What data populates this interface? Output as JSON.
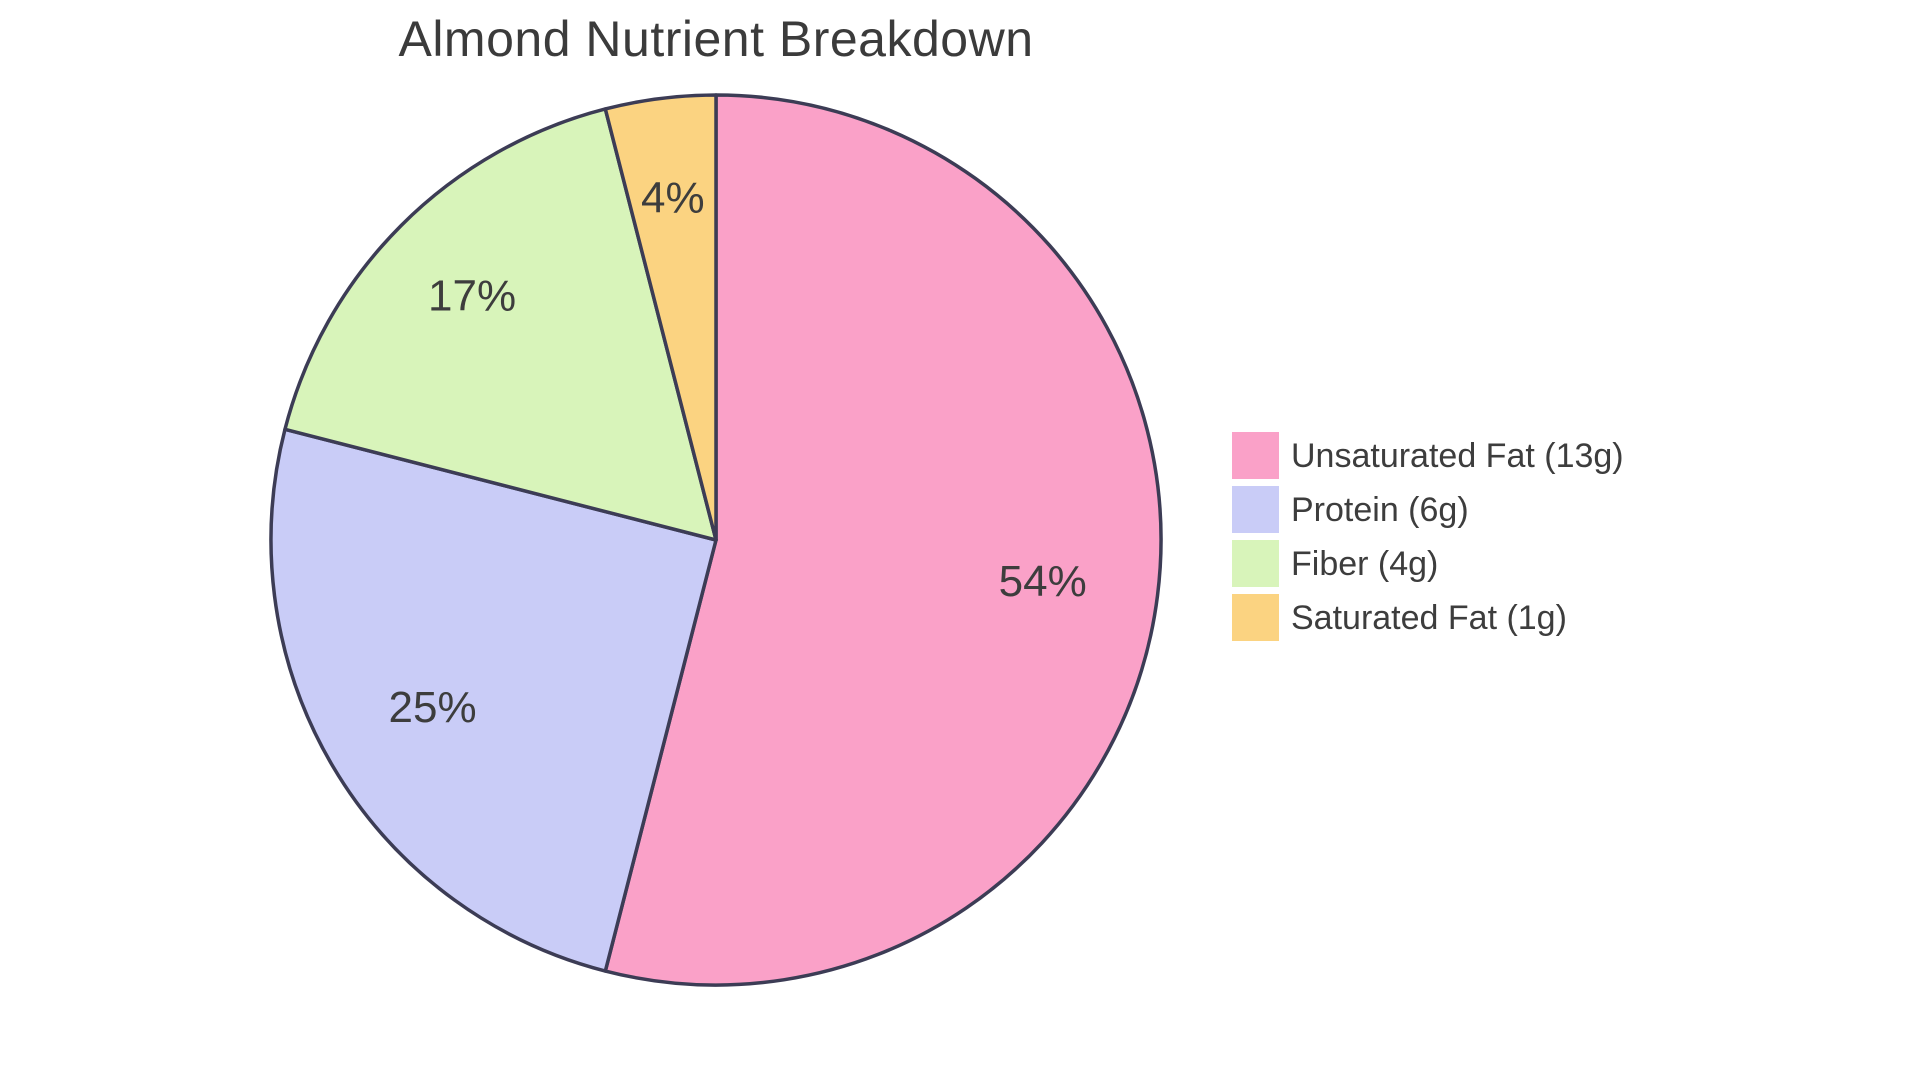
{
  "page": {
    "background_color": "#FFFFFF"
  },
  "chart_data": {
    "type": "pie",
    "title": "Almond Nutrient Breakdown",
    "legend_position": "right",
    "start_angle_deg": 0,
    "direction": "clockwise",
    "outline_color": "#3C3C55",
    "title_color": "#3B3B3B",
    "label_color": "#3D3D3D",
    "slices": [
      {
        "label": "Unsaturated Fat (13g)",
        "grams": 13,
        "percent": 54,
        "percent_label": "54%",
        "color": "#FAA1C8"
      },
      {
        "label": "Protein (6g)",
        "grams": 6,
        "percent": 25,
        "percent_label": "25%",
        "color": "#C9CCF7"
      },
      {
        "label": "Fiber (4g)",
        "grams": 4,
        "percent": 17,
        "percent_label": "17%",
        "color": "#D8F4BA"
      },
      {
        "label": "Saturated Fat (1g)",
        "grams": 1,
        "percent": 4,
        "percent_label": "4%",
        "color": "#FBD381"
      }
    ]
  }
}
